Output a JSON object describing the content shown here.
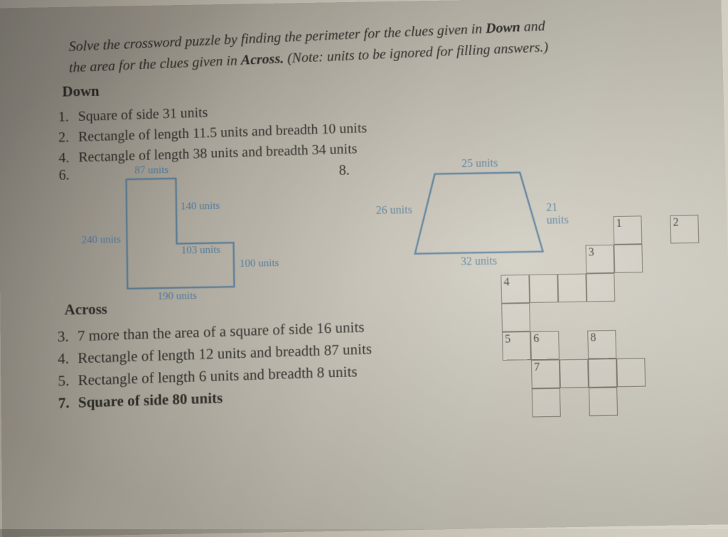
{
  "intro_line1_a": "Solve the crossword puzzle by finding the perimeter for the clues given in ",
  "intro_line1_b": "Down",
  "intro_line1_c": " and",
  "intro_line2_a": "the area for the clues given in ",
  "intro_line2_b": "Across.",
  "intro_line2_c": " (Note: units to be ignored for filling answers.)",
  "down_heading": "Down",
  "down": [
    {
      "n": "1.",
      "t": "Square of side 31 units"
    },
    {
      "n": "2.",
      "t": "Rectangle of length 11.5 units and breadth 10 units"
    },
    {
      "n": "4.",
      "t": "Rectangle of length 38 units and breadth 34 units"
    }
  ],
  "fig6_num": "6.",
  "fig8_num": "8.",
  "lshape": {
    "top": "87 units",
    "right1": "140 units",
    "notch": "103 units",
    "left": "240 units",
    "bottom_right": "100 units",
    "bottom": "190 units",
    "stroke": "#5a7f9a"
  },
  "trap": {
    "top": "25 units",
    "left": "26 units",
    "right": "21 units",
    "bottom": "32 units",
    "stroke": "#5a7f9a"
  },
  "across_heading": "Across",
  "across": [
    {
      "n": "3.",
      "t": "7 more than the area of a square of side 16 units"
    },
    {
      "n": "4.",
      "t": "Rectangle of length 12 units and breadth 87 units"
    },
    {
      "n": "5.",
      "t": "Rectangle of length 6 units and breadth 8 units"
    },
    {
      "n": "7.",
      "t": "Square of side 80 units"
    }
  ],
  "grid": {
    "cell": 40,
    "cells": [
      {
        "r": 0,
        "c": 4,
        "label": "1"
      },
      {
        "r": 0,
        "c": 6,
        "label": "2"
      },
      {
        "r": 1,
        "c": 3,
        "label": "3"
      },
      {
        "r": 1,
        "c": 4,
        "label": ""
      },
      {
        "r": 2,
        "c": 0,
        "label": "4"
      },
      {
        "r": 2,
        "c": 1,
        "label": ""
      },
      {
        "r": 2,
        "c": 2,
        "label": ""
      },
      {
        "r": 2,
        "c": 3,
        "label": ""
      },
      {
        "r": 3,
        "c": 0,
        "label": ""
      },
      {
        "r": 4,
        "c": 0,
        "label": "5"
      },
      {
        "r": 4,
        "c": 1,
        "label": "6"
      },
      {
        "r": 4,
        "c": 3,
        "label": "8"
      },
      {
        "r": 5,
        "c": 1,
        "label": "7"
      },
      {
        "r": 5,
        "c": 2,
        "label": ""
      },
      {
        "r": 5,
        "c": 3,
        "label": ""
      },
      {
        "r": 5,
        "c": 4,
        "label": ""
      },
      {
        "r": 6,
        "c": 1,
        "label": ""
      },
      {
        "r": 6,
        "c": 3,
        "label": ""
      }
    ]
  }
}
